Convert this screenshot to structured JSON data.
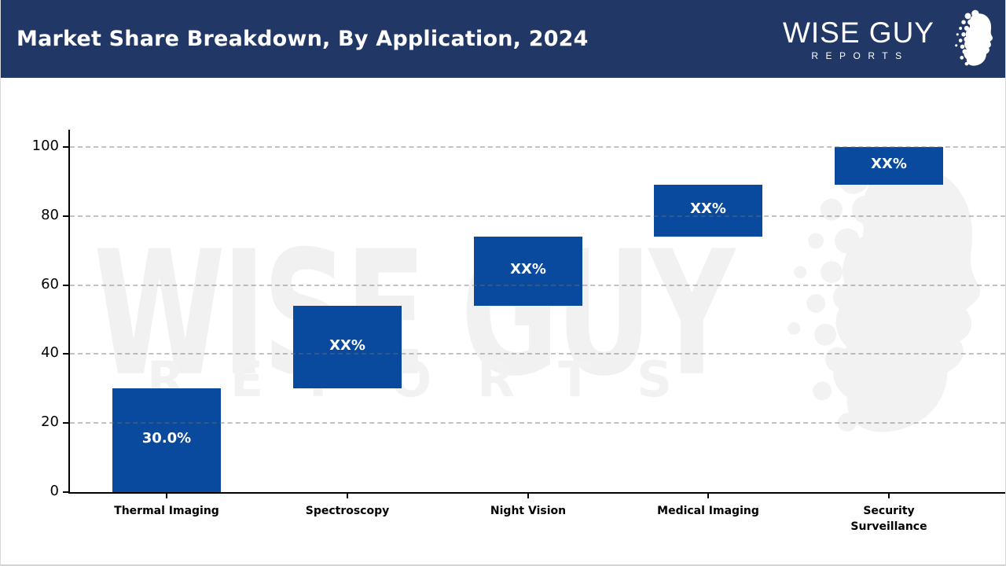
{
  "header": {
    "title": "Market Share Breakdown, By Application, 2024",
    "logo": {
      "line1": "WISE GUY",
      "line2": "REPORTS"
    }
  },
  "watermark": {
    "line1": "WISE GUY",
    "line2": "REPORTS"
  },
  "chart_data": {
    "type": "bar",
    "variant": "waterfall",
    "title": "Market Share Breakdown, By Application, 2024",
    "categories": [
      "Thermal Imaging",
      "Spectroscopy",
      "Night Vision",
      "Medical Imaging",
      "Security\nSurveillance"
    ],
    "bars": [
      {
        "category": "Thermal Imaging",
        "start": 0,
        "end": 30,
        "label": "30.0%"
      },
      {
        "category": "Spectroscopy",
        "start": 30,
        "end": 54,
        "label": "XX%"
      },
      {
        "category": "Night Vision",
        "start": 54,
        "end": 74,
        "label": "XX%"
      },
      {
        "category": "Medical Imaging",
        "start": 74,
        "end": 89,
        "label": "XX%"
      },
      {
        "category": "Security Surveillance",
        "start": 89,
        "end": 100,
        "label": "XX%"
      }
    ],
    "ylim": [
      0,
      100
    ],
    "yticks": [
      0,
      20,
      40,
      60,
      80,
      100
    ],
    "xlabel": "",
    "ylabel": "",
    "grid": "horizontal-dashed",
    "legend": "none",
    "bar_color": "#0a4a9e",
    "bar_label_color": "#ffffff"
  },
  "colors": {
    "header_bg": "#213765",
    "bar": "#0a4a9e",
    "axis": "#000000",
    "watermark": "#f1f1f1"
  }
}
